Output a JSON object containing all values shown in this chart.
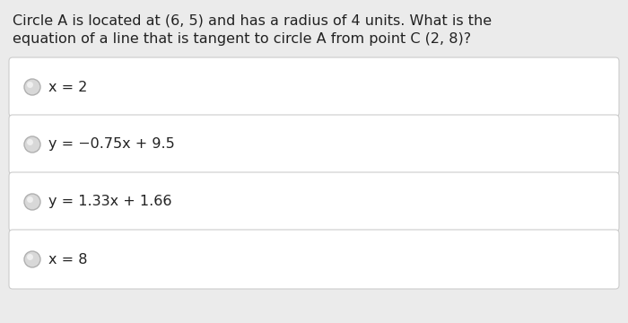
{
  "question_line1": "Circle A is located at (6, 5) and has a radius of 4 units. What is the",
  "question_line2": "equation of a line that is tangent to circle A from point C (2, 8)?",
  "options": [
    "x = 2",
    "y = −0.75x + 9.5",
    "y = 1.33x + 1.66",
    "x = 8"
  ],
  "bg_color": "#ebebeb",
  "box_color": "#ffffff",
  "box_border_color": "#cccccc",
  "text_color": "#222222",
  "radio_border_color": "#b0b0b0",
  "radio_fill_color": "#d8d8d8",
  "question_fontsize": 11.5,
  "option_fontsize": 11.5,
  "fig_width": 7.0,
  "fig_height": 3.6,
  "dpi": 100
}
